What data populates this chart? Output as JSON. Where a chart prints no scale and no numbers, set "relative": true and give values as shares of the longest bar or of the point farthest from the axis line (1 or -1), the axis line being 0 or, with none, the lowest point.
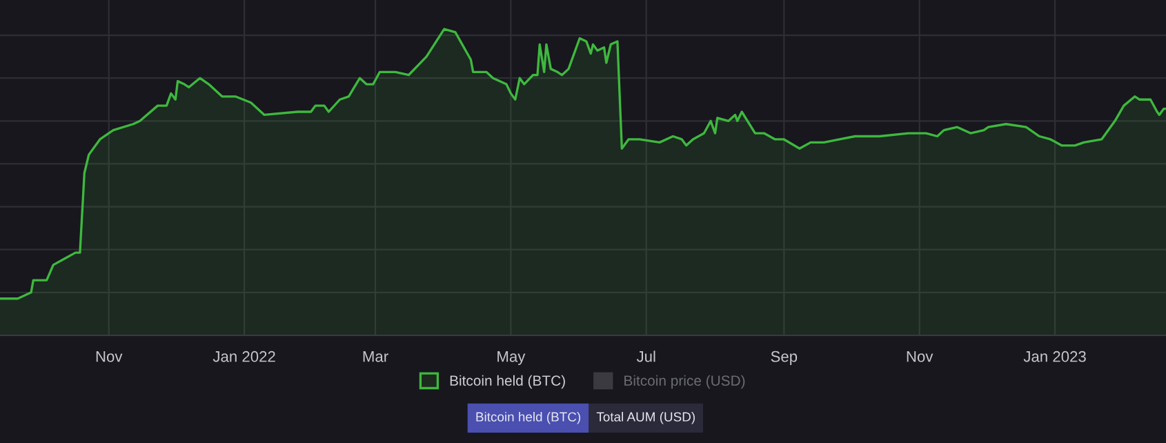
{
  "chart_data": {
    "type": "area",
    "relative": true,
    "grid": true,
    "legend": "bottom",
    "xlim": [
      "2021-09-13",
      "2023-02-20"
    ],
    "xticks": [
      {
        "value": "2021-11-01",
        "label": "Nov"
      },
      {
        "value": "2022-01-01",
        "label": "Jan 2022"
      },
      {
        "value": "2022-03-01",
        "label": "Mar"
      },
      {
        "value": "2022-05-01",
        "label": "May"
      },
      {
        "value": "2022-07-01",
        "label": "Jul"
      },
      {
        "value": "2022-09-01",
        "label": "Sep"
      },
      {
        "value": "2022-11-01",
        "label": "Nov"
      },
      {
        "value": "2023-01-01",
        "label": "Jan 2023"
      }
    ],
    "annotations": [
      "Bitcoin held (BTC)",
      "Total AUM (USD)"
    ],
    "series": [
      {
        "name": "Bitcoin held (BTC)",
        "color": "#3fb83f",
        "x": [
          "2021-09-13",
          "2021-09-21",
          "2021-09-27",
          "2021-09-28",
          "2021-10-04",
          "2021-10-07",
          "2021-10-12",
          "2021-10-17",
          "2021-10-19",
          "2021-10-21",
          "2021-10-23",
          "2021-10-28",
          "2021-11-03",
          "2021-11-12",
          "2021-11-15",
          "2021-11-23",
          "2021-11-27",
          "2021-11-29",
          "2021-12-01",
          "2021-12-02",
          "2021-12-05",
          "2021-12-07",
          "2021-12-12",
          "2021-12-16",
          "2021-12-22",
          "2021-12-28",
          "2022-01-04",
          "2022-01-10",
          "2022-01-25",
          "2022-01-31",
          "2022-02-02",
          "2022-02-06",
          "2022-02-08",
          "2022-02-13",
          "2022-02-17",
          "2022-02-22",
          "2022-02-25",
          "2022-02-28",
          "2022-03-03",
          "2022-03-07",
          "2022-03-10",
          "2022-03-16",
          "2022-03-24",
          "2022-04-01",
          "2022-04-06",
          "2022-04-13",
          "2022-04-14",
          "2022-04-20",
          "2022-04-23",
          "2022-04-29",
          "2022-05-01",
          "2022-05-03",
          "2022-05-05",
          "2022-05-07",
          "2022-05-11",
          "2022-05-13",
          "2022-05-14",
          "2022-05-16",
          "2022-05-17",
          "2022-05-19",
          "2022-05-22",
          "2022-05-24",
          "2022-05-27",
          "2022-06-01",
          "2022-06-04",
          "2022-06-06",
          "2022-06-07",
          "2022-06-09",
          "2022-06-12",
          "2022-06-13",
          "2022-06-15",
          "2022-06-18",
          "2022-06-20",
          "2022-06-23",
          "2022-06-28",
          "2022-07-07",
          "2022-07-13",
          "2022-07-17",
          "2022-07-19",
          "2022-07-22",
          "2022-07-27",
          "2022-07-30",
          "2022-08-01",
          "2022-08-02",
          "2022-08-07",
          "2022-08-10",
          "2022-08-11",
          "2022-08-13",
          "2022-08-19",
          "2022-08-23",
          "2022-08-28",
          "2022-09-01",
          "2022-09-08",
          "2022-09-13",
          "2022-09-19",
          "2022-09-26",
          "2022-10-03",
          "2022-10-14",
          "2022-10-27",
          "2022-11-04",
          "2022-11-09",
          "2022-11-12",
          "2022-11-18",
          "2022-11-24",
          "2022-11-30",
          "2022-12-02",
          "2022-12-10",
          "2022-12-19",
          "2022-12-25",
          "2022-12-30",
          "2023-01-04",
          "2023-01-10",
          "2023-01-14",
          "2023-01-22",
          "2023-01-28",
          "2023-02-01",
          "2023-02-06",
          "2023-02-08",
          "2023-02-13",
          "2023-02-16",
          "2023-02-17",
          "2023-02-19",
          "2023-02-20"
        ],
        "values": [
          0.12,
          0.12,
          0.14,
          0.18,
          0.18,
          0.23,
          0.25,
          0.27,
          0.27,
          0.53,
          0.59,
          0.64,
          0.67,
          0.69,
          0.7,
          0.75,
          0.75,
          0.79,
          0.77,
          0.83,
          0.82,
          0.81,
          0.84,
          0.82,
          0.78,
          0.78,
          0.76,
          0.72,
          0.73,
          0.73,
          0.75,
          0.75,
          0.73,
          0.77,
          0.78,
          0.84,
          0.82,
          0.82,
          0.86,
          0.86,
          0.86,
          0.85,
          0.91,
          1.0,
          0.99,
          0.9,
          0.86,
          0.86,
          0.84,
          0.82,
          0.79,
          0.77,
          0.84,
          0.82,
          0.85,
          0.85,
          0.95,
          0.86,
          0.95,
          0.87,
          0.86,
          0.85,
          0.87,
          0.97,
          0.96,
          0.92,
          0.95,
          0.93,
          0.94,
          0.89,
          0.95,
          0.96,
          0.61,
          0.64,
          0.64,
          0.63,
          0.65,
          0.64,
          0.62,
          0.64,
          0.66,
          0.7,
          0.66,
          0.71,
          0.7,
          0.72,
          0.7,
          0.73,
          0.66,
          0.66,
          0.64,
          0.64,
          0.61,
          0.63,
          0.63,
          0.64,
          0.65,
          0.65,
          0.66,
          0.66,
          0.65,
          0.67,
          0.68,
          0.66,
          0.67,
          0.68,
          0.69,
          0.68,
          0.65,
          0.64,
          0.62,
          0.62,
          0.63,
          0.64,
          0.7,
          0.75,
          0.78,
          0.77,
          0.77,
          0.73,
          0.72,
          0.74,
          0.74
        ]
      },
      {
        "name": "Bitcoin price (USD)",
        "color": "#3a3a40"
      }
    ]
  }
}
